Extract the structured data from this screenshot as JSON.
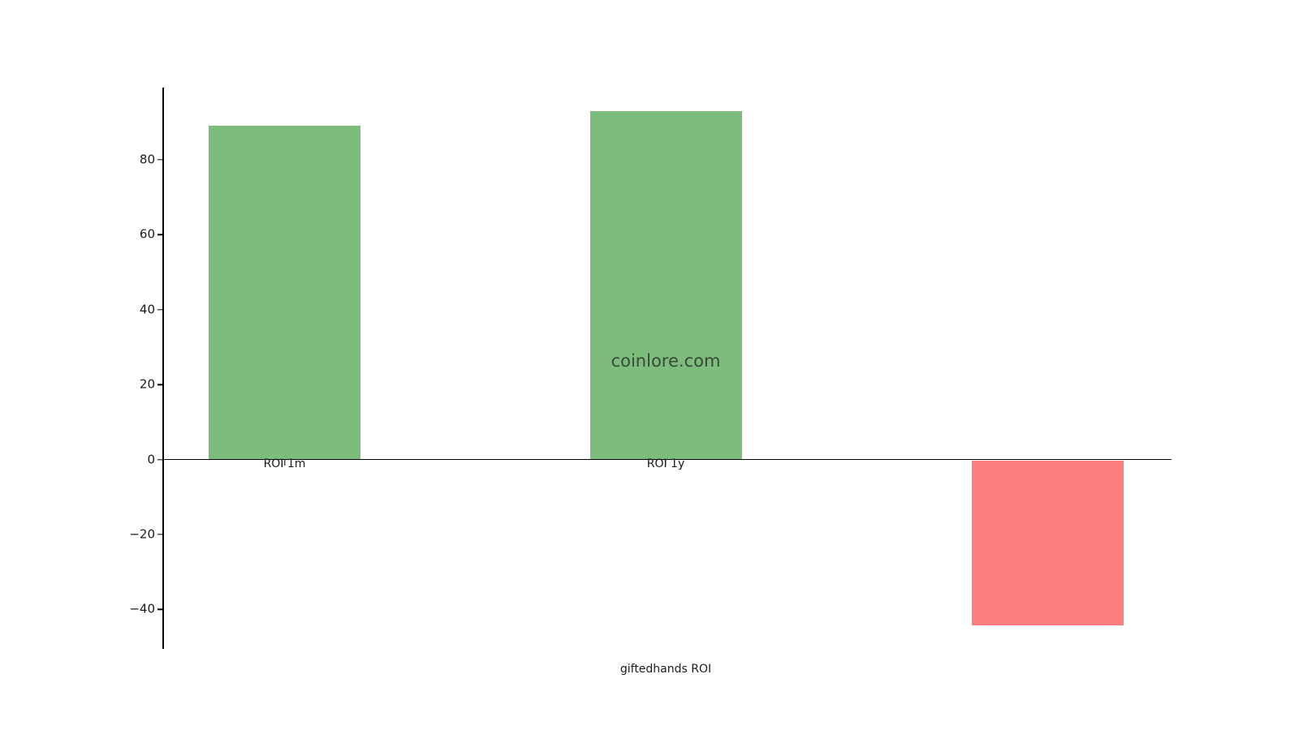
{
  "page": {
    "background": "#ffffff"
  },
  "chart_data": {
    "type": "bar",
    "title": "",
    "xlabel": "giftedhands ROI",
    "ylabel": "",
    "categories": [
      "ROI 1m",
      "ROI 1y",
      ""
    ],
    "values": [
      89,
      93,
      -44
    ],
    "bar_colors": [
      "#7cbd7c",
      "#7cbd7c",
      "#fe7e7e"
    ],
    "positive_color": "#7cbd7c",
    "negative_color": "#fe7e7e",
    "ylim": [
      -51,
      100
    ],
    "yticks": [
      80,
      60,
      40,
      20,
      0,
      -20,
      -40
    ],
    "ytick_labels": [
      "80",
      "60",
      "40",
      "20",
      "0",
      "−20",
      "−40"
    ],
    "grid": false,
    "legend": "none",
    "axis_color": "#000000",
    "text_color": "#1c1c1c",
    "watermark": "coinlore.com",
    "watermark_color": "#2d2d2d"
  }
}
